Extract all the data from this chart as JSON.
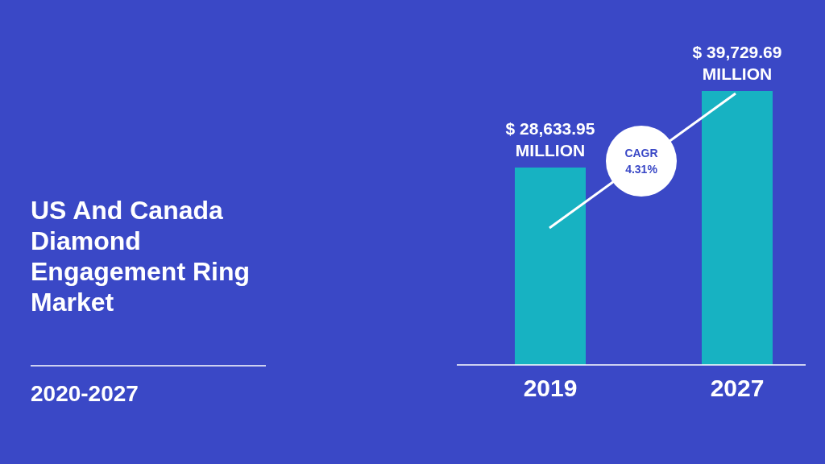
{
  "chart_data": {
    "type": "bar",
    "title": "US And Canada Diamond Engagement Ring Market",
    "subtitle": "2020-2027",
    "categories": [
      "2019",
      "2027"
    ],
    "values": [
      28633.95,
      39729.69
    ],
    "value_labels": [
      "$ 28,633.95 MILLION",
      "$ 39,729.69 MILLION"
    ],
    "color": "#17b2c2",
    "annotations": [
      "CAGR",
      "4.31%"
    ],
    "data_labels": false
  }
}
